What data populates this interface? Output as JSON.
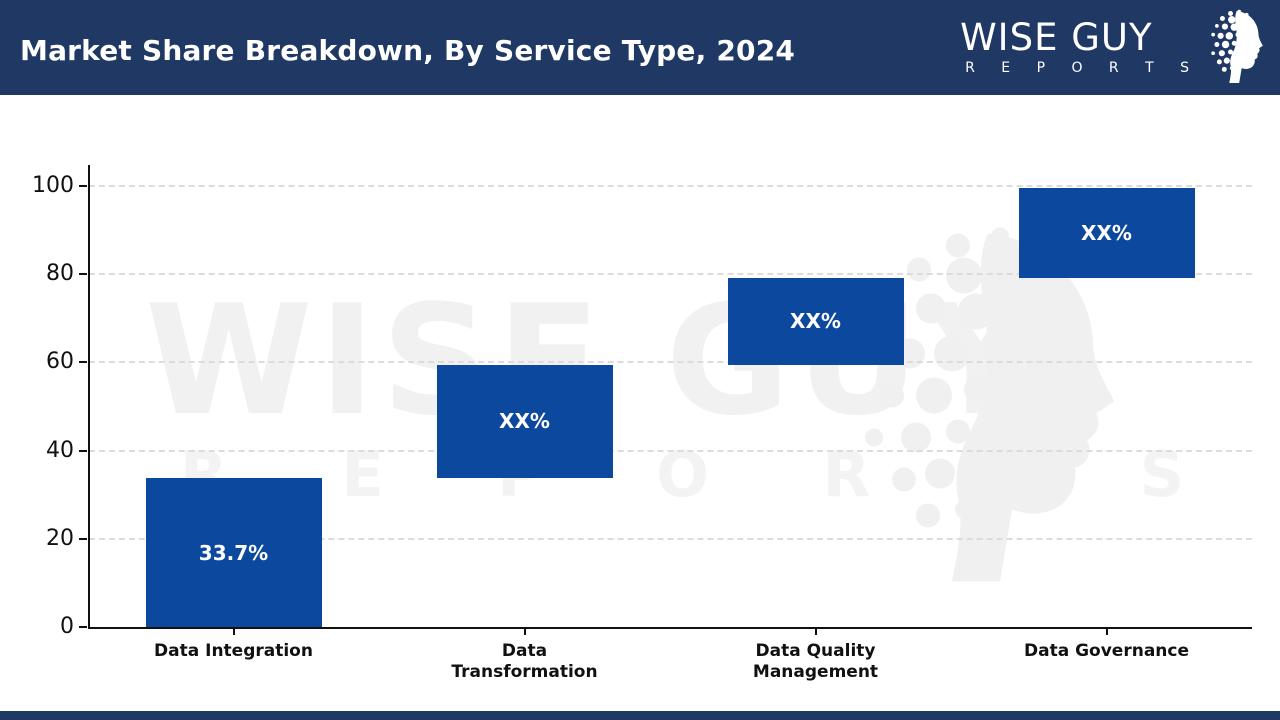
{
  "header": {
    "title": "Market Share Breakdown, By Service Type, 2024",
    "logo": {
      "line1": "WISE GUY",
      "line2": "R E P O R T S",
      "head_icon": "dotted-face-profile"
    }
  },
  "watermark": {
    "line1": "WISE GUY",
    "line2": "R E P O R T S",
    "head_icon": "dotted-face-profile"
  },
  "colors": {
    "header_navy": "#1f3864",
    "bar_blue": "#0c489e",
    "grid_gray": "#dcdcdc",
    "axis_black": "#111111",
    "bar_label_white": "#ffffff",
    "watermark_gray": "#f1f1f1"
  },
  "chart_data": {
    "type": "bar",
    "subtype": "waterfall-stacked-progression",
    "title": "Market Share Breakdown, By Service Type, 2024",
    "categories": [
      "Data Integration",
      "Data\nTransformation",
      "Data Quality\nManagement",
      "Data Governance"
    ],
    "bars": [
      {
        "category": "Data Integration",
        "start": 0,
        "end": 33.7,
        "label": "33.7%"
      },
      {
        "category": "Data Transformation",
        "start": 33.7,
        "end": 59.5,
        "label": "XX%"
      },
      {
        "category": "Data Quality Management",
        "start": 59.5,
        "end": 79.2,
        "label": "XX%"
      },
      {
        "category": "Data Governance",
        "start": 79.2,
        "end": 99.5,
        "label": "XX%"
      }
    ],
    "xlabel": "",
    "ylabel": "",
    "ylim": [
      0,
      105
    ],
    "yticks": [
      0,
      20,
      40,
      60,
      80,
      100
    ],
    "grid": "dashed-horizontal",
    "legend": "none",
    "bar_color": "#0c489e"
  }
}
